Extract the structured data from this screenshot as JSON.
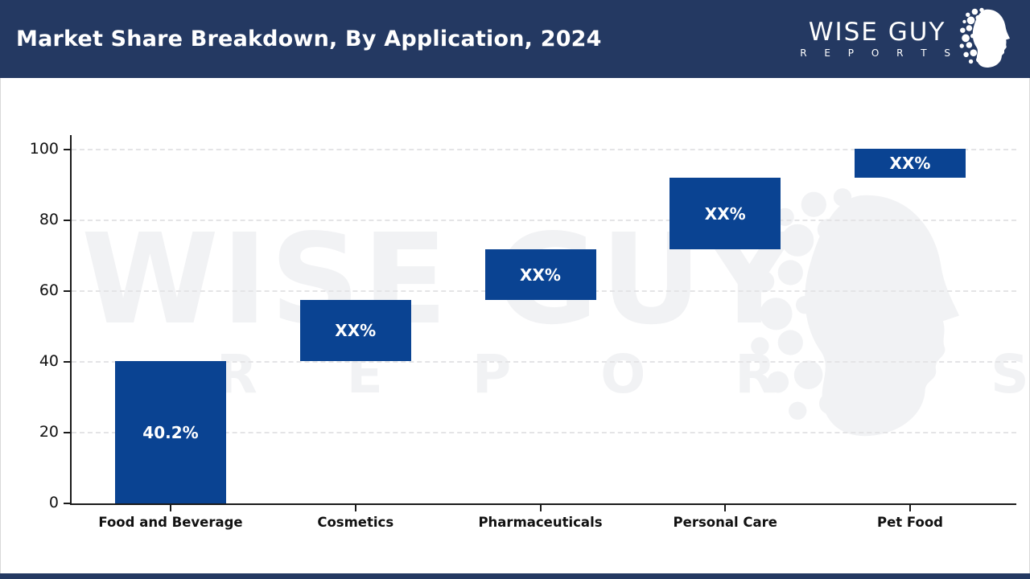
{
  "header": {
    "title": "Market Share Breakdown, By Application, 2024",
    "logo": {
      "line1": "WISE GUY",
      "line2": "R E P O R T S"
    }
  },
  "watermark": {
    "line1": "WISE GUY",
    "line2": "R E P O R T S"
  },
  "colors": {
    "header_bg": "#243962",
    "bar": "#0a4392",
    "bar_label_text": "#ffffff",
    "gridline": "#e4e4e6",
    "axis": "#1a1a1a",
    "watermark": "#f1f2f4"
  },
  "chart_data": {
    "type": "bar",
    "subtype": "waterfall",
    "title": "Market Share Breakdown, By Application, 2024",
    "categories": [
      "Food and Beverage",
      "Cosmetics",
      "Pharmaceuticals",
      "Personal Care",
      "Pet Food"
    ],
    "segments": [
      {
        "category": "Food and Beverage",
        "start": 0,
        "end": 40.2,
        "label": "40.2%"
      },
      {
        "category": "Cosmetics",
        "start": 40.2,
        "end": 57.5,
        "label": "XX%"
      },
      {
        "category": "Pharmaceuticals",
        "start": 57.5,
        "end": 71.8,
        "label": "XX%"
      },
      {
        "category": "Personal Care",
        "start": 71.8,
        "end": 92.0,
        "label": "XX%"
      },
      {
        "category": "Pet Food",
        "start": 92.0,
        "end": 100.2,
        "label": "XX%"
      }
    ],
    "yticks": [
      0,
      20,
      40,
      60,
      80,
      100
    ],
    "ylim": [
      0,
      104
    ],
    "xlabel": "",
    "ylabel": "",
    "grid": "horizontal-dashed",
    "legend": "none"
  }
}
